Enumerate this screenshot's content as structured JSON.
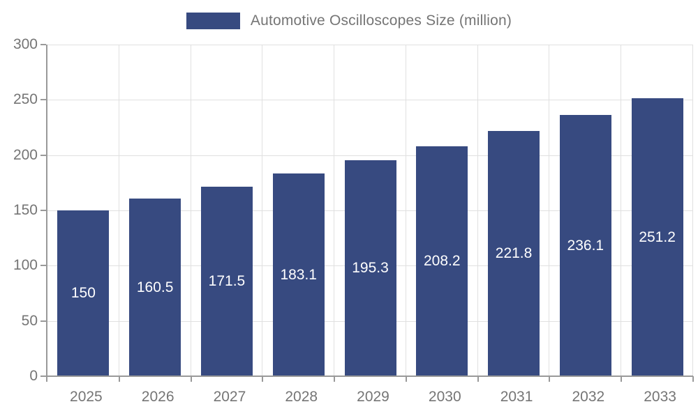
{
  "chart_data": {
    "type": "bar",
    "title": "",
    "legend": "Automotive Oscilloscopes Size (million)",
    "legend_position": "top-center",
    "categories": [
      "2025",
      "2026",
      "2027",
      "2028",
      "2029",
      "2030",
      "2031",
      "2032",
      "2033"
    ],
    "series": [
      {
        "name": "Automotive Oscilloscopes Size (million)",
        "values": [
          150,
          160.5,
          171.5,
          183.1,
          195.3,
          208.2,
          221.8,
          236.1,
          251.2
        ],
        "value_labels": [
          "150",
          "160.5",
          "171.5",
          "183.1",
          "195.3",
          "208.2",
          "221.8",
          "236.1",
          "251.2"
        ]
      }
    ],
    "xlabel": "",
    "ylabel": "",
    "ylim": [
      0,
      300
    ],
    "yticks": [
      0,
      50,
      100,
      150,
      200,
      250,
      300
    ],
    "grid": true,
    "bar_label_position": "inside-center",
    "colors": {
      "bar": "#374a80",
      "grid_line": "#e0e0e0",
      "axis_line": "#999999",
      "tick_text": "#757575",
      "bar_label_text": "#ffffff",
      "background": "#ffffff"
    }
  }
}
